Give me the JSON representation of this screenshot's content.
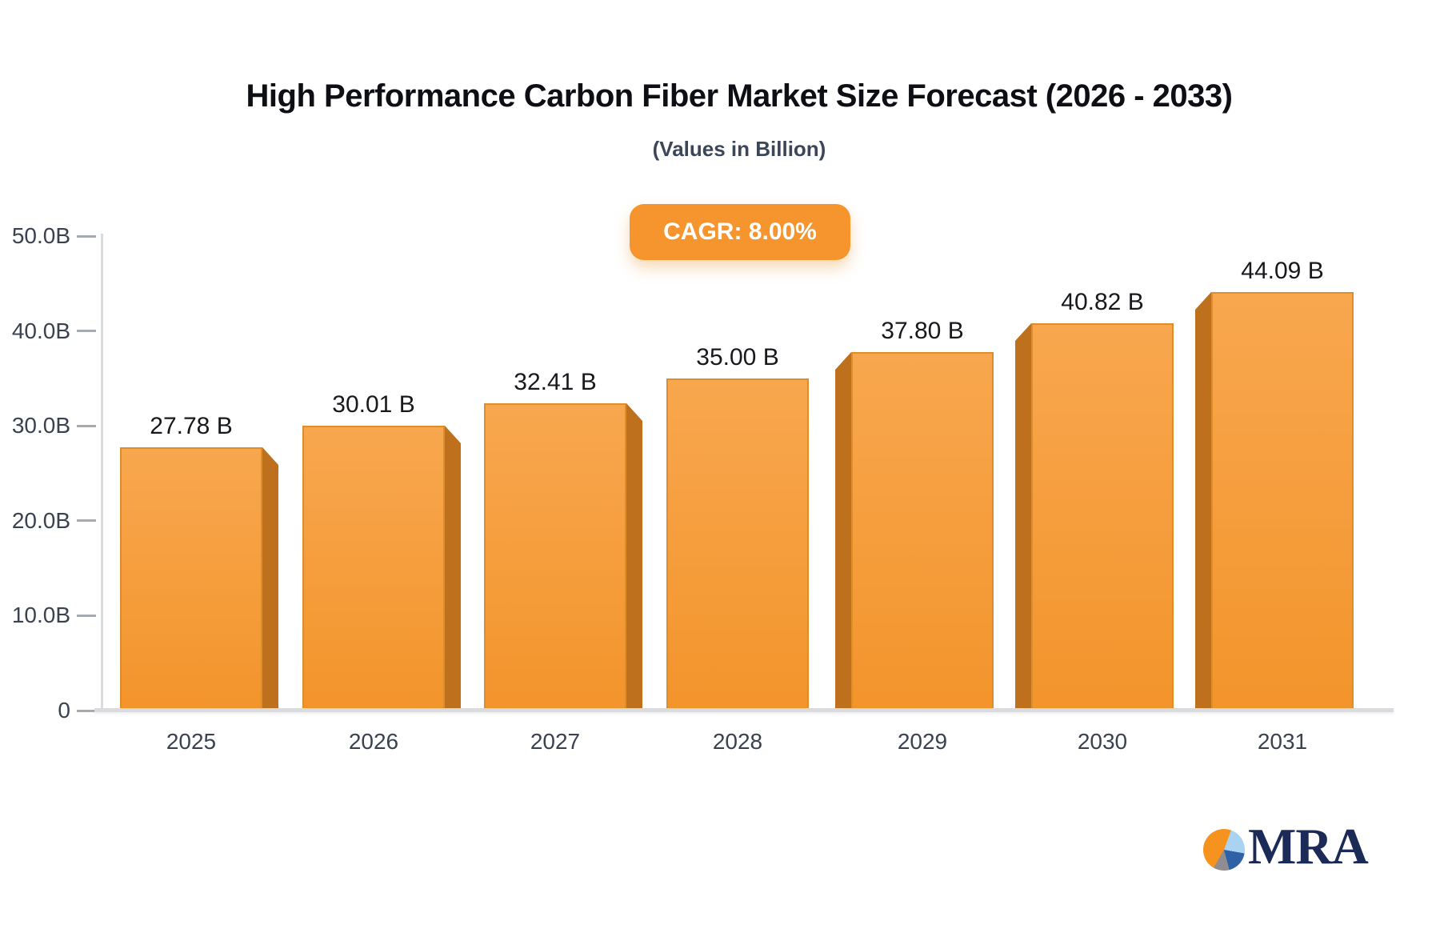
{
  "chart_data": {
    "type": "bar",
    "title": "High Performance Carbon Fiber Market Size Forecast (2026 - 2033)",
    "subtitle": "(Values in Billion)",
    "cagr_label": "CAGR: 8.00%",
    "categories": [
      "2025",
      "2026",
      "2027",
      "2028",
      "2029",
      "2030",
      "2031"
    ],
    "values": [
      27.78,
      30.01,
      32.41,
      35.0,
      37.8,
      40.82,
      44.09
    ],
    "value_labels": [
      "27.78 B",
      "30.01 B",
      "32.41 B",
      "35.00 B",
      "37.80 B",
      "40.82 B",
      "44.09 B"
    ],
    "xlabel": "",
    "ylabel": "",
    "ylim": [
      0,
      50
    ],
    "yticks": [
      0,
      10,
      20,
      30,
      40,
      50
    ],
    "ytick_labels": [
      "0",
      "10.0B",
      "20.0B",
      "30.0B",
      "40.0B",
      "50.0B"
    ],
    "grid": false,
    "legend": false,
    "bar_style": {
      "face_top": "#F8A74F",
      "face_bottom": "#F3942B",
      "face_border": "#DE8D2B",
      "side_3d": "#BE701D"
    },
    "axis_color": "#D9DBDE",
    "tick_color": "#A6ABB2"
  },
  "colors": {
    "accent_orange": "#F6952D",
    "value_label_text": "#17191D",
    "axis_label_text": "#3A4250",
    "title_text": "#0D0F14",
    "subtitle_text": "#3C4658",
    "logo_navy": "#1B2A56",
    "logo_orange": "#F6921E",
    "logo_lightblue": "#A9D3F1",
    "logo_blue": "#2E61A5",
    "logo_gray": "#908C8F"
  },
  "logo": {
    "text": "MRA"
  }
}
